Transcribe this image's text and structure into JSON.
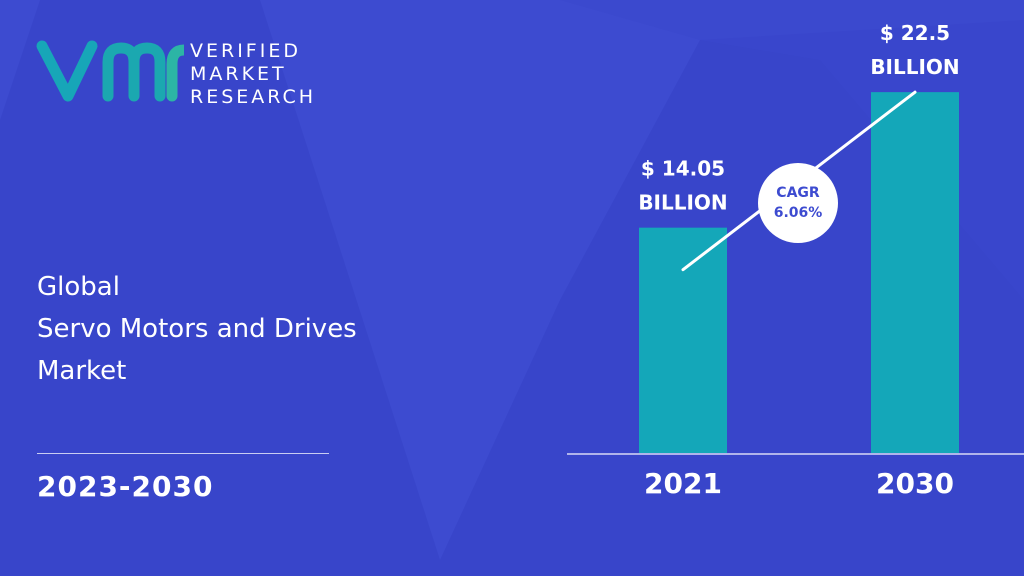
{
  "brand": {
    "line1": "VERIFIED",
    "line2": "MARKET",
    "line3": "RESEARCH",
    "accent_color": "#17a6b8"
  },
  "heading": {
    "line1": "Global",
    "line2": "Servo Motors and Drives",
    "line3": "Market"
  },
  "period": "2023-2030",
  "colors": {
    "background": "#3d4bd0",
    "background_shape": "#3340c4",
    "bar": "#14a7b9",
    "text": "#ffffff",
    "badge_text": "#3d4bd0"
  },
  "chart_data": {
    "type": "bar",
    "categories": [
      "2021",
      "2030"
    ],
    "values": [
      14.05,
      22.5
    ],
    "value_labels": [
      [
        "$ 14.05",
        "BILLION"
      ],
      [
        "$ 22.5",
        "BILLION"
      ]
    ],
    "cagr_label": [
      "CAGR",
      "6.06%"
    ],
    "title": "",
    "xlabel": "",
    "ylabel": "",
    "ylim": [
      0,
      26
    ],
    "grid": false,
    "legend": "none"
  }
}
